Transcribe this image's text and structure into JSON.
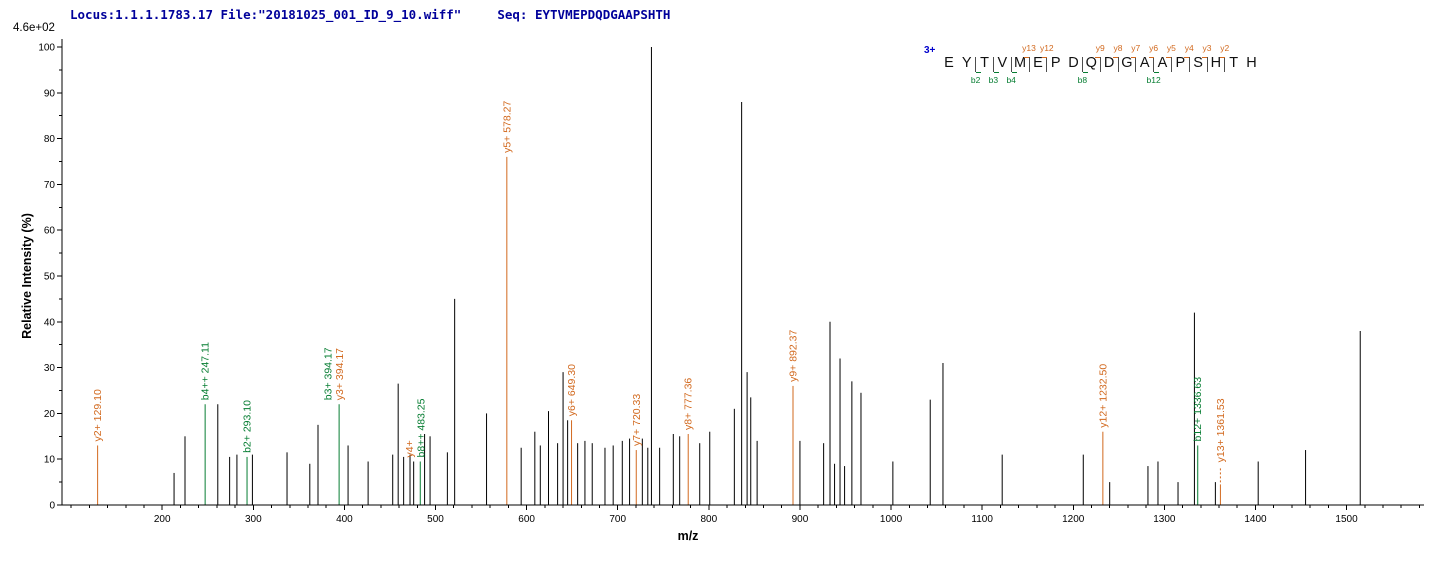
{
  "header": {
    "locus_file": "Locus:1.1.1.1783.17 File:\"20181025_001_ID_9_10.wiff\"",
    "seq": "Seq: EYTVMEPDQDGAAPSHTH",
    "text_color": "#00009b"
  },
  "y_axis_scale_label": "4.6e+02",
  "sequence_annotation": {
    "charge": "3+",
    "charge_color": "#0000cd",
    "residues": [
      "E",
      "Y",
      "T",
      "V",
      "M",
      "E",
      "P",
      "D",
      "Q",
      "D",
      "G",
      "A",
      "A",
      "P",
      "S",
      "H",
      "T",
      "H"
    ],
    "y_ion_marks": [
      {
        "label": "y13",
        "after": 5
      },
      {
        "label": "y12",
        "after": 6
      },
      {
        "label": "y9",
        "after": 9
      },
      {
        "label": "y8",
        "after": 10
      },
      {
        "label": "y7",
        "after": 11
      },
      {
        "label": "y6",
        "after": 12
      },
      {
        "label": "y5",
        "after": 13
      },
      {
        "label": "y4",
        "after": 14
      },
      {
        "label": "y3",
        "after": 15
      },
      {
        "label": "y2",
        "after": 16
      }
    ],
    "b_ion_marks": [
      {
        "label": "b2",
        "after": 2
      },
      {
        "label": "b3",
        "after": 3
      },
      {
        "label": "b4",
        "after": 4
      },
      {
        "label": "b8",
        "after": 8
      },
      {
        "label": "b12",
        "after": 12
      }
    ]
  },
  "chart_data": {
    "type": "bar",
    "subtype": "ms2-fragmentation-spectrum",
    "title": "",
    "xlabel": "m/z",
    "ylabel": "Relative  Intensity (%)",
    "xlim": [
      90,
      1585
    ],
    "ylim": [
      0,
      100
    ],
    "x_major_ticks": [
      200,
      300,
      400,
      500,
      600,
      700,
      800,
      900,
      1000,
      1100,
      1200,
      1300,
      1400,
      1500
    ],
    "y_major_ticks": [
      0,
      10,
      20,
      30,
      40,
      50,
      60,
      70,
      80,
      90,
      100
    ],
    "grid": false,
    "colors": {
      "unlabeled_peak": "#000000",
      "y_ion": "#d2691e",
      "b_ion": "#067d32"
    },
    "labeled_peaks": [
      {
        "mz": 129.1,
        "intensity": 13,
        "ion": "y",
        "labels": [
          {
            "text": "y2+ 129.10",
            "type": "y"
          }
        ]
      },
      {
        "mz": 247.11,
        "intensity": 22,
        "ion": "b",
        "labels": [
          {
            "text": "b4++ 247.11",
            "type": "b"
          }
        ]
      },
      {
        "mz": 293.1,
        "intensity": 10.5,
        "ion": "b",
        "labels": [
          {
            "text": "b2+ 293.10",
            "type": "b"
          }
        ]
      },
      {
        "mz": 394.17,
        "intensity": 22,
        "ion": "b",
        "labels": [
          {
            "text": "b3+ 394.17",
            "type": "b"
          },
          {
            "text": "y3+ 394.17",
            "type": "y"
          }
        ]
      },
      {
        "mz": 483.25,
        "intensity": 9.5,
        "ion": "b",
        "labels": [
          {
            "text": "y4+",
            "type": "y"
          },
          {
            "text": "b8++ 483.25",
            "type": "b"
          }
        ]
      },
      {
        "mz": 578.27,
        "intensity": 76,
        "ion": "y",
        "labels": [
          {
            "text": "y5+ 578.27",
            "type": "y"
          }
        ]
      },
      {
        "mz": 649.3,
        "intensity": 18.5,
        "ion": "y",
        "labels": [
          {
            "text": "y6+ 649.30",
            "type": "y"
          }
        ]
      },
      {
        "mz": 720.33,
        "intensity": 12,
        "ion": "y",
        "labels": [
          {
            "text": "y7+ 720.33",
            "type": "y"
          }
        ]
      },
      {
        "mz": 777.36,
        "intensity": 15.5,
        "ion": "y",
        "labels": [
          {
            "text": "y8+ 777.36",
            "type": "y"
          }
        ]
      },
      {
        "mz": 892.37,
        "intensity": 26,
        "ion": "y",
        "labels": [
          {
            "text": "y9+ 892.37",
            "type": "y"
          }
        ]
      },
      {
        "mz": 1232.5,
        "intensity": 16,
        "ion": "y",
        "labels": [
          {
            "text": "y12+ 1232.50",
            "type": "y"
          }
        ]
      },
      {
        "mz": 1336.63,
        "intensity": 13,
        "ion": "b",
        "labels": [
          {
            "text": "b12+ 1336.63",
            "type": "b"
          }
        ]
      },
      {
        "mz": 1361.53,
        "intensity": 4.5,
        "ion": "y",
        "labels": [
          {
            "text": "y13+ 1361.53",
            "type": "y"
          }
        ],
        "dashed_leader": true
      }
    ],
    "unlabeled_peaks": [
      [
        213,
        7
      ],
      [
        225,
        15
      ],
      [
        261,
        22
      ],
      [
        274,
        10.5
      ],
      [
        282,
        11
      ],
      [
        299,
        11
      ],
      [
        337,
        11.5
      ],
      [
        362,
        9
      ],
      [
        371,
        17.5
      ],
      [
        404,
        13
      ],
      [
        426,
        9.5
      ],
      [
        453,
        11
      ],
      [
        459,
        26.5
      ],
      [
        465,
        10.5
      ],
      [
        472,
        11
      ],
      [
        476,
        9.5
      ],
      [
        488,
        15.5
      ],
      [
        494,
        15
      ],
      [
        513,
        11.5
      ],
      [
        521,
        45
      ],
      [
        556,
        20
      ],
      [
        594,
        12.5
      ],
      [
        609,
        16
      ],
      [
        615,
        13
      ],
      [
        624,
        20.5
      ],
      [
        634,
        13.5
      ],
      [
        640,
        29
      ],
      [
        645,
        18.5
      ],
      [
        656,
        13.5
      ],
      [
        664,
        14
      ],
      [
        672,
        13.5
      ],
      [
        686,
        12.5
      ],
      [
        695,
        13
      ],
      [
        705,
        14
      ],
      [
        713,
        14.5
      ],
      [
        727,
        14.5
      ],
      [
        733,
        12.5
      ],
      [
        737,
        100
      ],
      [
        746,
        12.5
      ],
      [
        761,
        15.5
      ],
      [
        768,
        15
      ],
      [
        790,
        13.5
      ],
      [
        801,
        16
      ],
      [
        828,
        21
      ],
      [
        836,
        88
      ],
      [
        842,
        29
      ],
      [
        846,
        23.5
      ],
      [
        853,
        14
      ],
      [
        900,
        14
      ],
      [
        926,
        13.5
      ],
      [
        933,
        40
      ],
      [
        938,
        9
      ],
      [
        944,
        32
      ],
      [
        949,
        8.5
      ],
      [
        957,
        27
      ],
      [
        967,
        24.5
      ],
      [
        1002,
        9.5
      ],
      [
        1043,
        23
      ],
      [
        1057,
        31
      ],
      [
        1122,
        11
      ],
      [
        1211,
        11
      ],
      [
        1240,
        5
      ],
      [
        1282,
        8.5
      ],
      [
        1293,
        9.5
      ],
      [
        1315,
        5
      ],
      [
        1333,
        42
      ],
      [
        1356,
        5
      ],
      [
        1403,
        9.5
      ],
      [
        1455,
        12
      ],
      [
        1515,
        38
      ]
    ]
  }
}
